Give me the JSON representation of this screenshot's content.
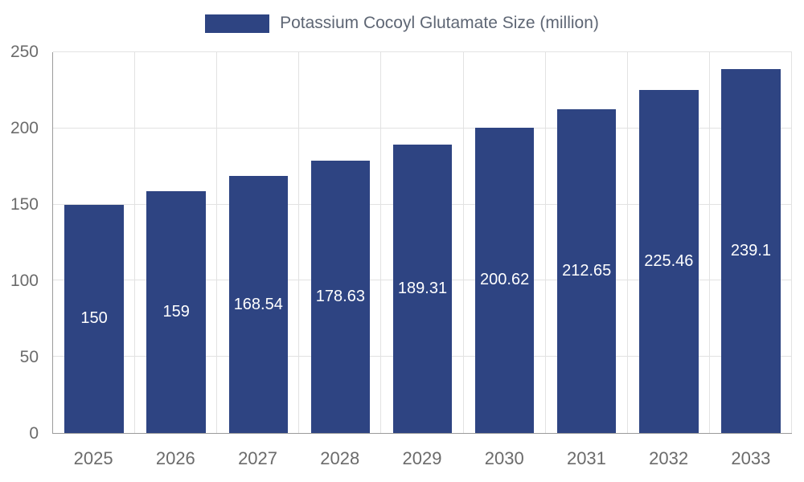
{
  "chart_data": {
    "type": "bar",
    "title": "Potassium Cocoyl Glutamate Size (million)",
    "legend_label": "Potassium Cocoyl Glutamate Size (million)",
    "legend_position": "top",
    "categories": [
      "2025",
      "2026",
      "2027",
      "2028",
      "2029",
      "2030",
      "2031",
      "2032",
      "2033"
    ],
    "values": [
      150,
      159,
      168.54,
      178.63,
      189.31,
      200.62,
      212.65,
      225.46,
      239.1
    ],
    "value_labels": [
      "150",
      "159",
      "168.54",
      "178.63",
      "189.31",
      "200.62",
      "212.65",
      "225.46",
      "239.1"
    ],
    "xlabel": "",
    "ylabel": "",
    "ylim": [
      0,
      250
    ],
    "yticks": [
      0,
      50,
      100,
      150,
      200,
      250
    ],
    "grid": true,
    "label_position": "inside-center",
    "colors": {
      "bar": "#2e4482",
      "bar_label": "#ffffff",
      "axis_text": "#6b6b6b",
      "grid": "#e2e2e2",
      "axis_line": "#9b9b9b",
      "legend_text": "#5e6674",
      "background": "#ffffff"
    }
  }
}
